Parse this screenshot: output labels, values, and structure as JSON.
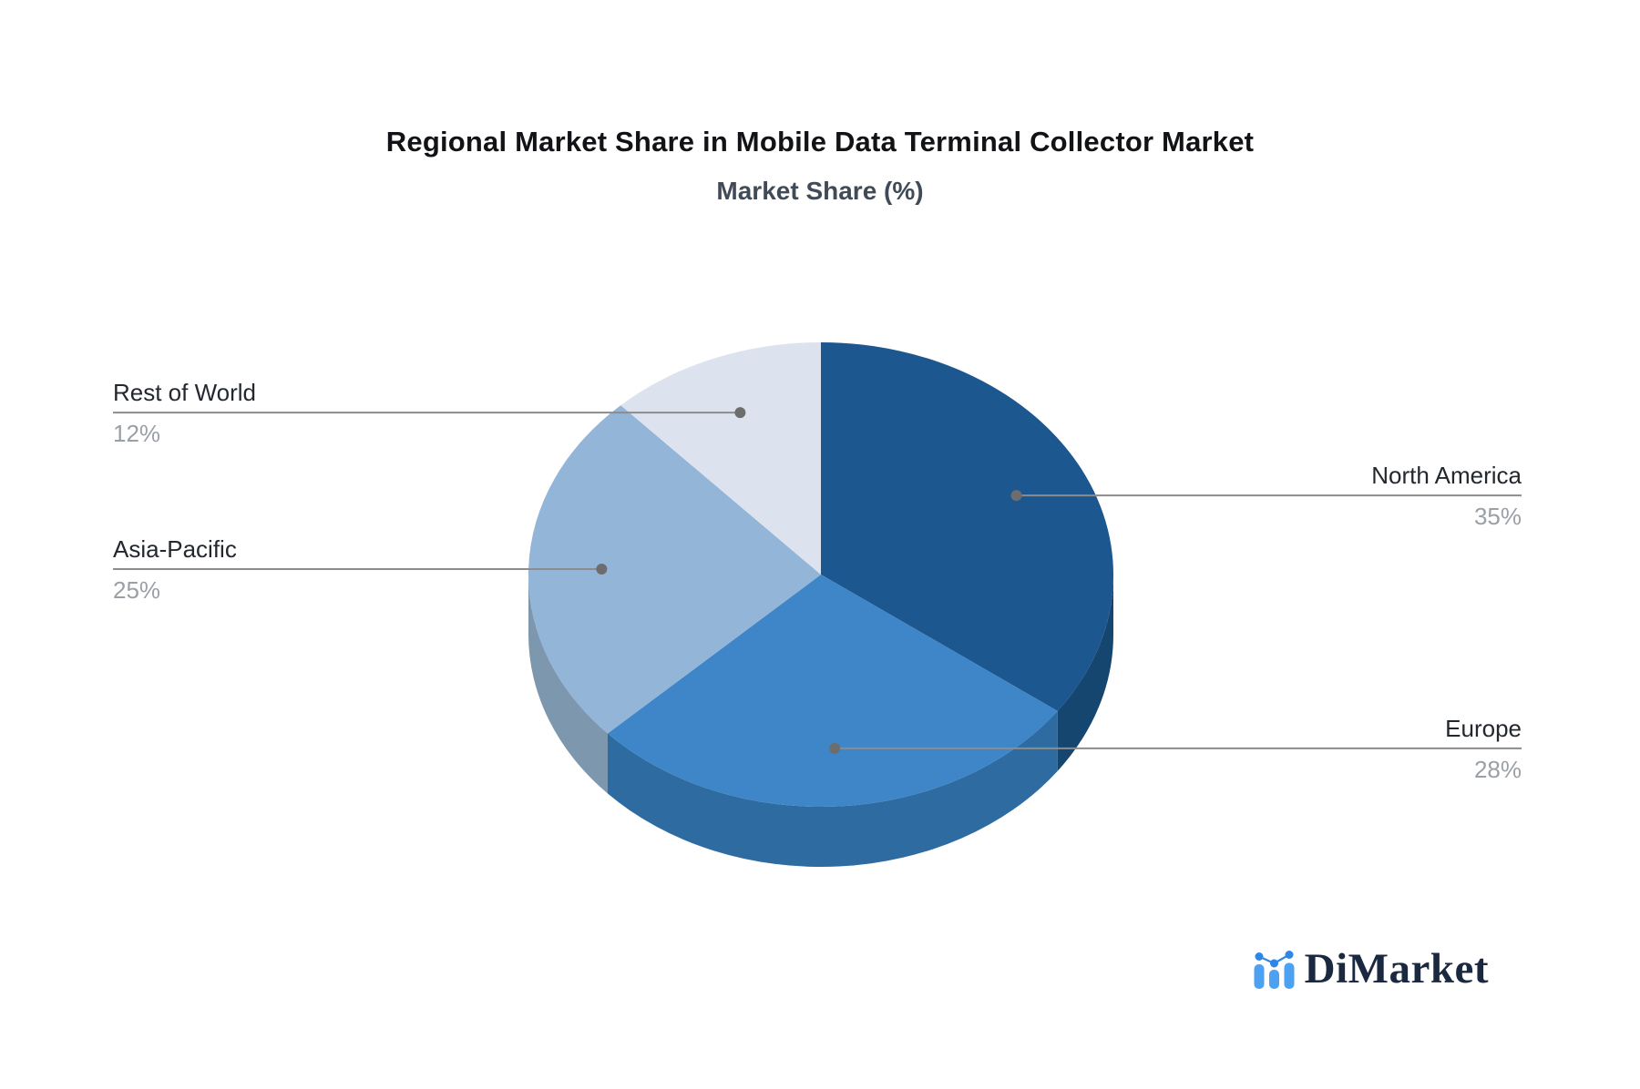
{
  "title": "Regional Market Share in Mobile Data Terminal Collector Market",
  "subtitle": "Market Share (%)",
  "chart_data": {
    "type": "pie",
    "style": "3d",
    "title": "Regional Market Share in Mobile Data Terminal Collector Market",
    "subtitle": "Market Share (%)",
    "unit": "%",
    "direction": "clockwise",
    "start_angle_deg": 0,
    "background": "#ffffff",
    "legend_position": "none",
    "categories": [
      "North America",
      "Europe",
      "Asia-Pacific",
      "Rest of World"
    ],
    "values": [
      35,
      28,
      25,
      12
    ],
    "slices": [
      {
        "label": "North America",
        "value": 35,
        "value_label": "35%",
        "color": "#1c5790",
        "side_color": "#15466f",
        "label_side": "right"
      },
      {
        "label": "Europe",
        "value": 28,
        "value_label": "28%",
        "color": "#3e86c8",
        "side_color": "#2d6ba1",
        "label_side": "right"
      },
      {
        "label": "Asia-Pacific",
        "value": 25,
        "value_label": "25%",
        "color": "#93b5d8",
        "side_color": "#7d97af",
        "label_side": "left"
      },
      {
        "label": "Rest of World",
        "value": 12,
        "value_label": "12%",
        "color": "#dce3ee",
        "label_side": "left"
      }
    ],
    "label_color": "#23282f",
    "value_color": "#9aa0a6",
    "leader_line_color": "#8c8c8c",
    "leader_dot_color": "#6d6d6d"
  },
  "logo": {
    "text": "DiMarket",
    "icon": "bar-chart-sparkline-icon",
    "bar_color": "#4da1f3",
    "dot_color": "#2e86e8",
    "text_color": "#1b2940"
  }
}
